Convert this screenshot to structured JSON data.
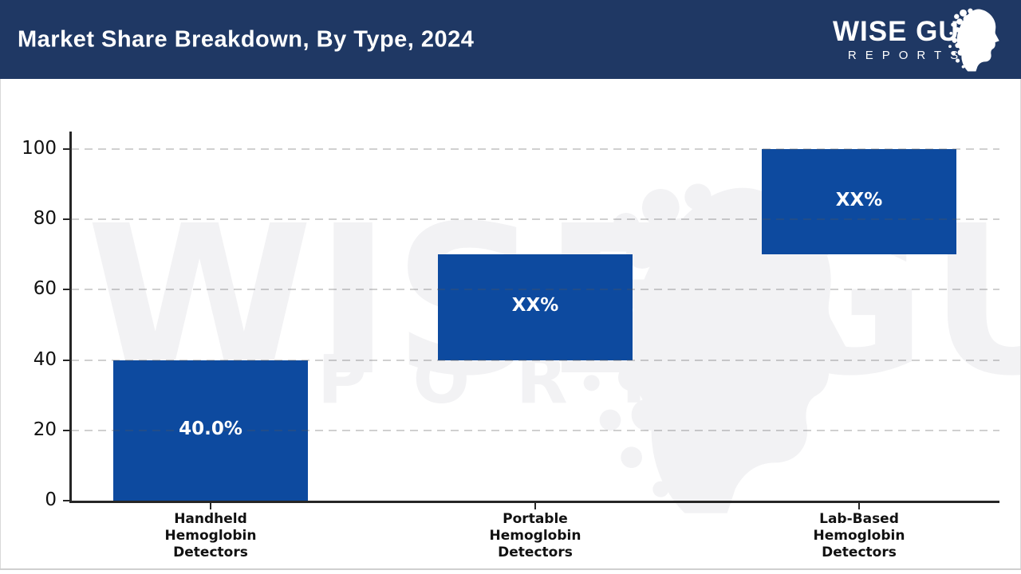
{
  "header": {
    "title": "Market Share Breakdown, By Type, 2024",
    "logo": {
      "line1": "WISE GUY",
      "line2": "REPORTS"
    }
  },
  "watermark": {
    "line1": "WISE GUY",
    "line2": "REPORTS"
  },
  "colors": {
    "header_bg": "#1f3864",
    "bar_blue": "#0d4a9f",
    "axis": "#262626",
    "watermark_gray": "#f2f2f4"
  },
  "chart_data": {
    "type": "bar",
    "subtype": "stacked-waterfall",
    "title": "Market Share Breakdown, By Type, 2024",
    "categories": [
      [
        "Handheld",
        "Hemoglobin",
        "Detectors"
      ],
      [
        "Portable",
        "Hemoglobin",
        "Detectors"
      ],
      [
        "Lab-Based",
        "Hemoglobin",
        "Detectors"
      ]
    ],
    "bars": [
      {
        "category": "Handheld Hemoglobin Detectors",
        "start": 0,
        "end": 40,
        "value": 40,
        "value_label": "40.0%"
      },
      {
        "category": "Portable Hemoglobin Detectors",
        "start": 40,
        "end": 70,
        "value": 30,
        "value_label": "XX%"
      },
      {
        "category": "Lab-Based Hemoglobin Detectors",
        "start": 70,
        "end": 100,
        "value": 30,
        "value_label": "XX%"
      }
    ],
    "ylim": [
      0,
      100
    ],
    "yticks": [
      0,
      20,
      40,
      60,
      80,
      100
    ],
    "bar_color": "#0d4a9f",
    "grid": {
      "axis": "y",
      "style": "dashed"
    },
    "legend": null,
    "xlabel": "",
    "ylabel": ""
  }
}
